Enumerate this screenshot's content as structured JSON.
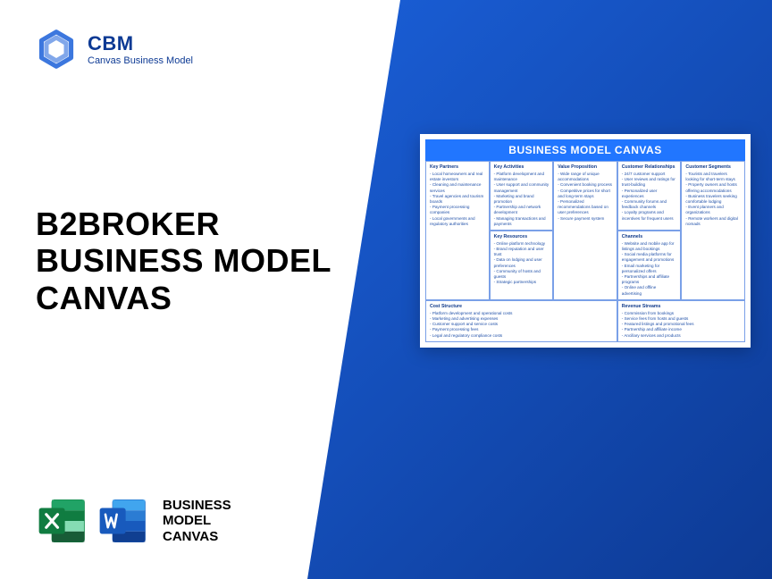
{
  "logo": {
    "brand": "CBM",
    "tagline": "Canvas Business Model"
  },
  "title": {
    "line1": "B2BROKER",
    "line2": "BUSINESS MODEL",
    "line3": "CANVAS"
  },
  "footer": {
    "line1": "BUSINESS",
    "line2": "MODEL",
    "line3": "CANVAS"
  },
  "canvas": {
    "heading": "BUSINESS MODEL CANVAS",
    "sections": {
      "key_partners": {
        "title": "Key Partners",
        "items": [
          "Local homeowners and real estate investors",
          "Cleaning and maintenance services",
          "Travel agencies and tourism boards",
          "Payment processing companies",
          "Local governments and regulatory authorities"
        ]
      },
      "key_activities": {
        "title": "Key Activities",
        "items": [
          "Platform development and maintenance",
          "User support and community management",
          "Marketing and brand promotion",
          "Partnership and network development",
          "Managing transactions and payments"
        ]
      },
      "key_resources": {
        "title": "Key Resources",
        "items": [
          "Online platform technology",
          "Brand reputation and user trust",
          "Data on lodging and user preferences",
          "Community of hosts and guests",
          "Strategic partnerships"
        ]
      },
      "value_proposition": {
        "title": "Value Proposition",
        "items": [
          "Wide range of unique accommodations",
          "Convenient booking process",
          "Competitive prices for short and long-term stays",
          "Personalized recommendations based on user preferences",
          "Secure payment system"
        ]
      },
      "customer_relationships": {
        "title": "Customer Relationships",
        "items": [
          "24/7 customer support",
          "User reviews and ratings for trust-building",
          "Personalized user experiences",
          "Community forums and feedback channels",
          "Loyalty programs and incentives for frequent users"
        ]
      },
      "channels": {
        "title": "Channels",
        "items": [
          "Website and mobile app for listings and bookings",
          "Social media platforms for engagement and promotions",
          "Email marketing for personalized offers",
          "Partnerships and affiliate programs",
          "Online and offline advertising"
        ]
      },
      "customer_segments": {
        "title": "Customer Segments",
        "items": [
          "Tourists and travelers looking for short-term stays",
          "Property owners and hosts offering accommodations",
          "Business travelers seeking comfortable lodging",
          "Event planners and organizations",
          "Remote workers and digital nomads"
        ]
      },
      "cost_structure": {
        "title": "Cost Structure",
        "items": [
          "Platform development and operational costs",
          "Marketing and advertising expenses",
          "Customer support and service costs",
          "Payment processing fees",
          "Legal and regulatory compliance costs"
        ]
      },
      "revenue_streams": {
        "title": "Revenue Streams",
        "items": [
          "Commission from bookings",
          "Service fees from hosts and guests",
          "Featured listings and promotional fees",
          "Partnership and affiliate income",
          "Ancillary services and products"
        ]
      }
    }
  },
  "colors": {
    "primary_blue": "#1a5fd8",
    "dark_blue": "#0d3a94",
    "canvas_blue": "#2176ff",
    "excel_green": "#107c41",
    "word_blue": "#185abd"
  }
}
